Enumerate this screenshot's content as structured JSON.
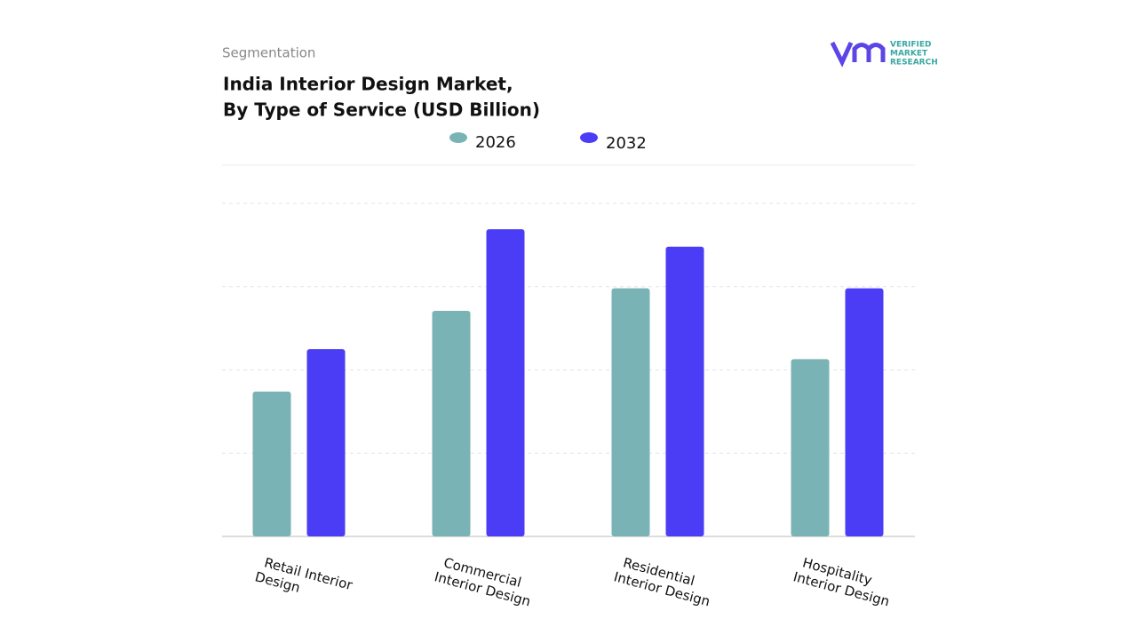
{
  "header": {
    "eyebrow": "Segmentation",
    "logo_text": [
      "VERIFIED",
      "MARKET",
      "RESEARCH"
    ]
  },
  "chart_data": {
    "type": "bar",
    "title": [
      "India Interior Design Market,",
      "By Type of Service (USD Billion)"
    ],
    "categories": [
      [
        "Retail Interior",
        "Design"
      ],
      [
        "Commercial",
        "Interior Design"
      ],
      [
        "Residential",
        "Interior Design"
      ],
      [
        "Hospitality",
        "Interior Design"
      ]
    ],
    "series": [
      {
        "name": "2026",
        "color": "#7ab3b5",
        "values": [
          1.74,
          2.71,
          2.98,
          2.13
        ]
      },
      {
        "name": "2032",
        "color": "#4b3cf5",
        "values": [
          2.25,
          3.69,
          3.48,
          2.98
        ]
      }
    ],
    "ylim": [
      0,
      4
    ],
    "gridlines": [
      1,
      2,
      3,
      4
    ],
    "grid": true
  }
}
